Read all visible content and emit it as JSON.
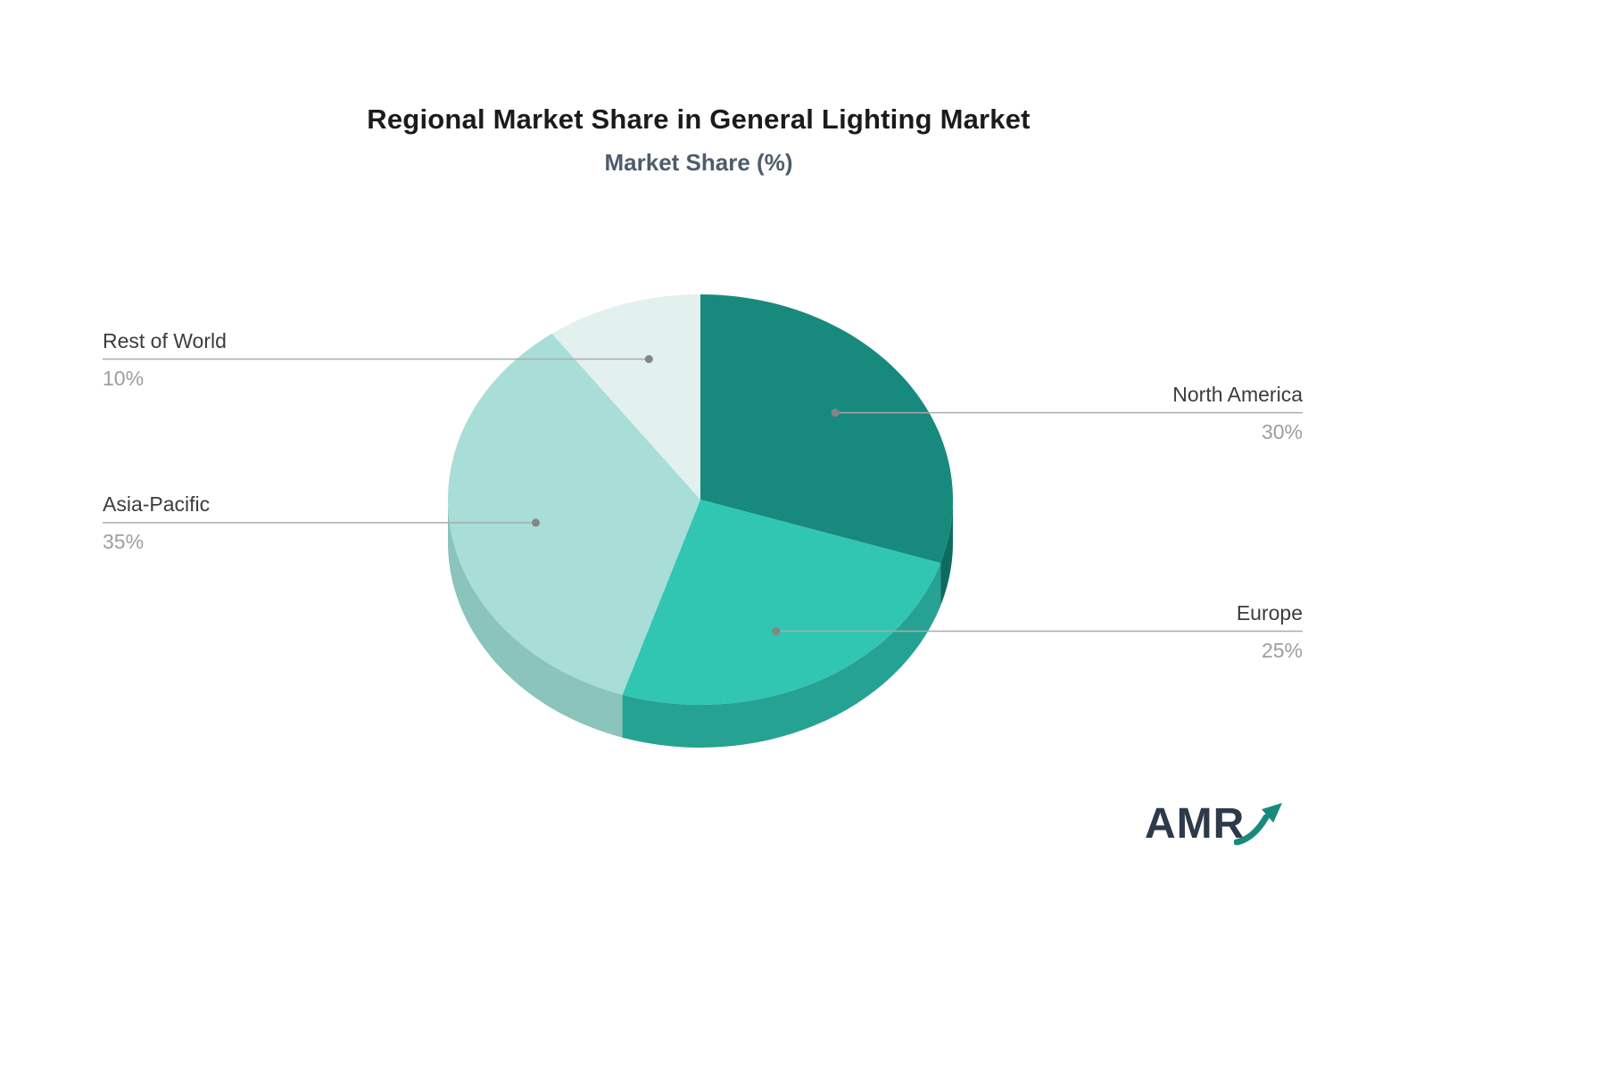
{
  "chart_data": {
    "type": "pie",
    "title": "Regional Market Share in General Lighting Market",
    "subtitle": "Market Share (%)",
    "start_angle_deg": 0,
    "direction": "clockwise",
    "style_3d": true,
    "labels_position": "outside-with-leader-lines",
    "legend_position": "none",
    "slices": [
      {
        "label": "North America",
        "value": 30,
        "pct_label": "30%",
        "color": "#178a7d",
        "side_color": "#0f6b61"
      },
      {
        "label": "Europe",
        "value": 25,
        "pct_label": "25%",
        "color": "#31c6b2",
        "side_color": "#26a293"
      },
      {
        "label": "Asia-Pacific",
        "value": 35,
        "pct_label": "35%",
        "color": "#a8ded7",
        "side_color": "#8ac4bc"
      },
      {
        "label": "Rest of World",
        "value": 10,
        "pct_label": "10%",
        "color": "#e2f0ee",
        "side_color": "#c5ddd9"
      }
    ],
    "leader_line_color": "#ababab",
    "leader_dot_color": "#858585"
  },
  "logo": {
    "text": "AMR"
  }
}
